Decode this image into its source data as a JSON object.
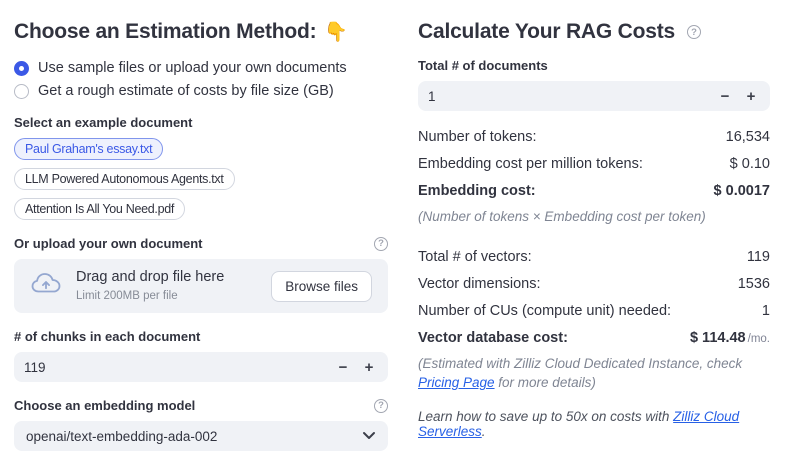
{
  "accent_color": "#3b59e6",
  "link_color": "#2760e6",
  "input_bg_color": "#f0f2f6",
  "icons": {
    "help": "?",
    "minus": "−",
    "plus": "+",
    "chevron_down": "chevron-down",
    "cloud_upload": "cloud-upload",
    "pointing_down": "👇"
  },
  "left": {
    "heading": "Choose an Estimation Method:",
    "heading_emoji": "👇",
    "radio_options": [
      {
        "label": "Use sample files or upload your own documents",
        "selected": true
      },
      {
        "label": "Get a rough estimate of costs by file size (GB)",
        "selected": false
      }
    ],
    "example_docs": {
      "label": "Select an example document",
      "pills": [
        {
          "label": "Paul Graham's essay.txt",
          "selected": true
        },
        {
          "label": "LLM Powered Autonomous Agents.txt",
          "selected": false
        },
        {
          "label": "Attention Is All You Need.pdf",
          "selected": false
        }
      ]
    },
    "upload": {
      "label": "Or upload your own document",
      "dropzone_title": "Drag and drop file here",
      "dropzone_limit": "Limit 200MB per file",
      "browse_button": "Browse files"
    },
    "chunks": {
      "label": "# of chunks in each document",
      "value": "119"
    },
    "model": {
      "label": "Choose an embedding model",
      "value": "openai/text-embedding-ada-002"
    }
  },
  "right": {
    "heading": "Calculate Your RAG Costs",
    "documents": {
      "label": "Total # of documents",
      "value": "1"
    },
    "rows": [
      {
        "label": "Number of tokens:",
        "value": "16,534",
        "bold": false
      },
      {
        "label": "Embedding cost per million tokens:",
        "value": "$ 0.10",
        "bold": false
      },
      {
        "label": "Embedding cost:",
        "value": "$ 0.0017",
        "bold": true
      },
      {
        "label": "Total # of vectors:",
        "value": "119",
        "bold": false
      },
      {
        "label": "Vector dimensions:",
        "value": "1536",
        "bold": false
      },
      {
        "label": "Number of CUs (compute unit) needed:",
        "value": "1",
        "bold": false
      },
      {
        "label": "Vector database cost:",
        "value": "$ 114.48",
        "unit": "/mo.",
        "bold": true
      }
    ],
    "embedding_caption": "(Number of tokens × Embedding cost per token)",
    "db_caption": {
      "prefix": "(Estimated with Zilliz Cloud Dedicated Instance, check ",
      "link": "Pricing Page",
      "suffix": " for more details)"
    },
    "learn": {
      "prefix": "Learn how to save up to 50x on costs with ",
      "link": "Zilliz Cloud Serverless",
      "suffix": "."
    }
  }
}
